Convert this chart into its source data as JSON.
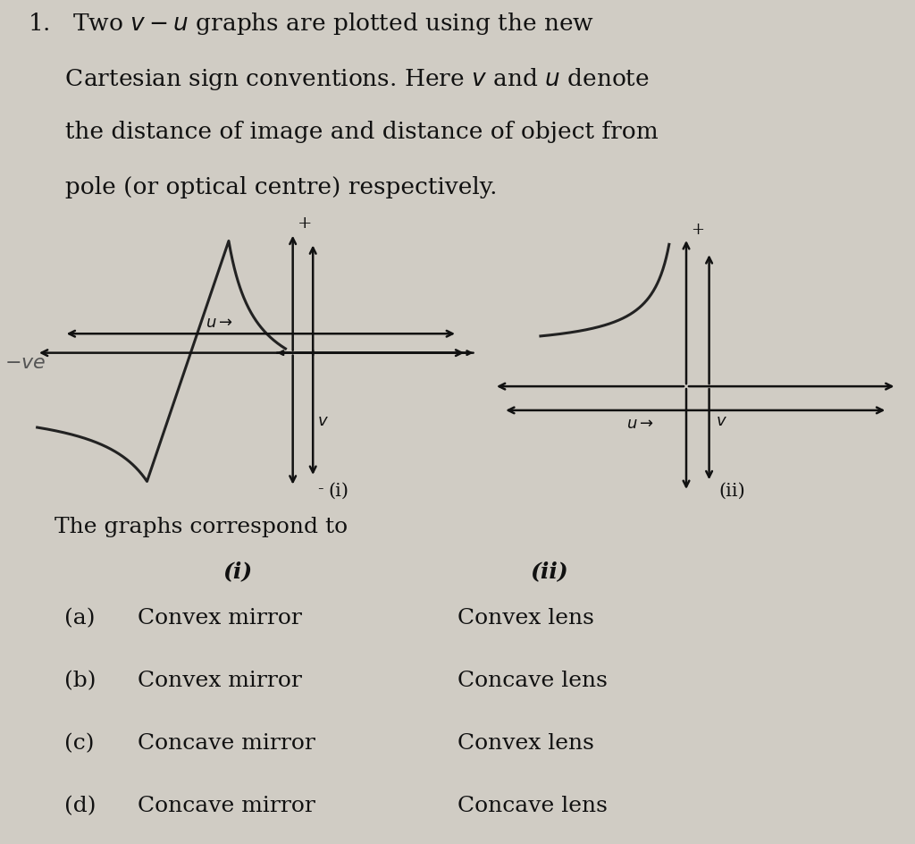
{
  "bg_color": "#d0ccc4",
  "text_color": "#111111",
  "curve_color": "#222222",
  "axis_color": "#111111",
  "font_size_title": 19,
  "font_size_graphs": 14,
  "font_size_option": 18,
  "font_size_label": 16,
  "graph1_label": "(i)",
  "graph2_label": "(ii)",
  "correspond_text": "The graphs correspond to",
  "col_i": "(i)",
  "col_ii": "(ii)",
  "options": [
    [
      "(a)",
      "Convex mirror",
      "Convex lens"
    ],
    [
      "(b)",
      "Convex mirror",
      "Concave lens"
    ],
    [
      "(c)",
      "Concave mirror",
      "Convex lens"
    ],
    [
      "(d)",
      "Concave mirror",
      "Concave lens"
    ]
  ]
}
